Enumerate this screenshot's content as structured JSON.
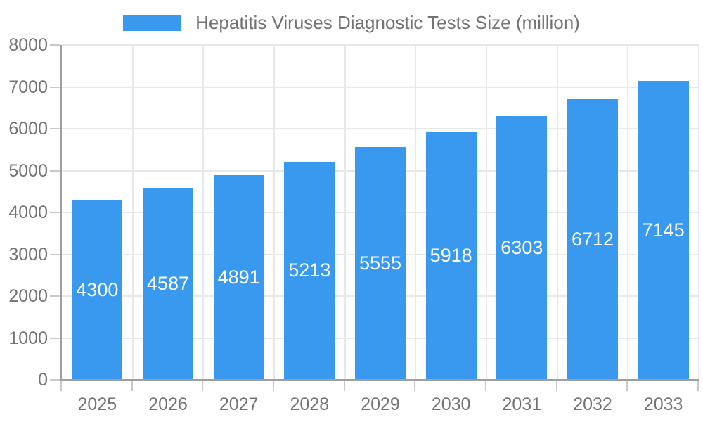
{
  "chart_data": {
    "type": "bar",
    "title": "Hepatitis Viruses Diagnostic Tests Size (million)",
    "legend": {
      "position": "top",
      "label": "Hepatitis Viruses Diagnostic Tests Size (million)"
    },
    "categories": [
      "2025",
      "2026",
      "2027",
      "2028",
      "2029",
      "2030",
      "2031",
      "2032",
      "2033"
    ],
    "values": [
      4300,
      4587,
      4891,
      5213,
      5555,
      5918,
      6303,
      6712,
      7145
    ],
    "xlabel": "",
    "ylabel": "",
    "ylim": [
      0,
      8000
    ],
    "ytick_step": 1000,
    "grid": true,
    "value_labels_shown": true,
    "colors": {
      "bar": "#3899ee",
      "grid": "#e8e8e8",
      "axis": "#9e9e9e",
      "tick": "#c9c9c9",
      "text": "#737373",
      "value_text": "#ffffff",
      "background": "#ffffff"
    }
  }
}
